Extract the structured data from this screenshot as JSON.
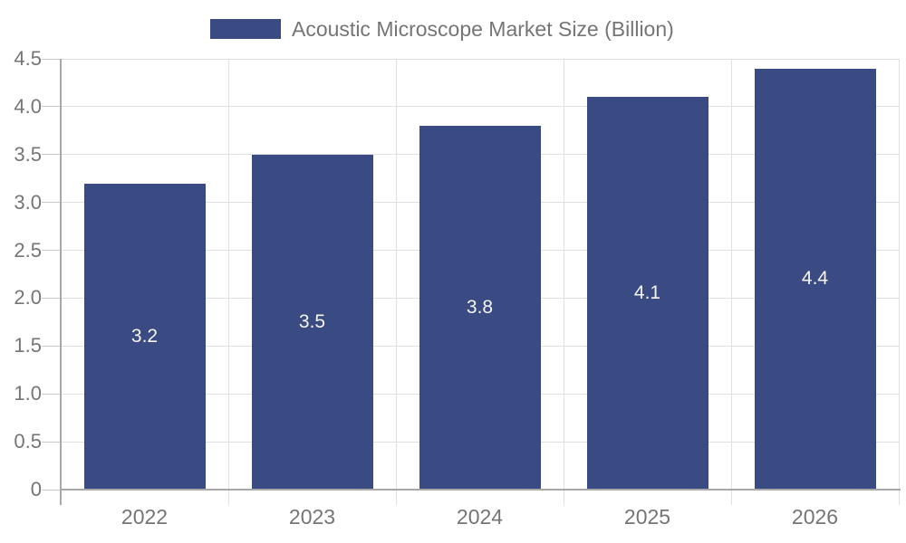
{
  "chart_data": {
    "type": "bar",
    "title": "Acoustic Microscope Market Size (Billion)",
    "legend": {
      "label": "Acoustic Microscope Market Size (Billion)",
      "position": "top-center"
    },
    "categories": [
      "2022",
      "2023",
      "2024",
      "2025",
      "2026"
    ],
    "values": [
      3.2,
      3.5,
      3.8,
      4.1,
      4.4
    ],
    "bar_labels": [
      "3.2",
      "3.5",
      "3.8",
      "4.1",
      "4.4"
    ],
    "xlabel": "",
    "ylabel": "",
    "ylim": [
      0,
      4.5
    ],
    "y_ticks": [
      0,
      0.5,
      1,
      1.5,
      2,
      2.5,
      3,
      3.5,
      4,
      4.5
    ],
    "y_tick_labels": [
      "0",
      "0.5",
      "1.0",
      "1.5",
      "2.0",
      "2.5",
      "3.0",
      "3.5",
      "4.0",
      "4.5"
    ],
    "grid": true,
    "bar_label_position": "inside-center",
    "colors": {
      "bar": "#3A4A82",
      "bar_label": "#F5F5F5",
      "axis_line": "#A8A8A8",
      "gridline": "#E0E0E0",
      "tick": "#C8C8C8",
      "axis_text": "#757575",
      "legend_text": "#757575",
      "background": "#FFFFFF"
    }
  }
}
